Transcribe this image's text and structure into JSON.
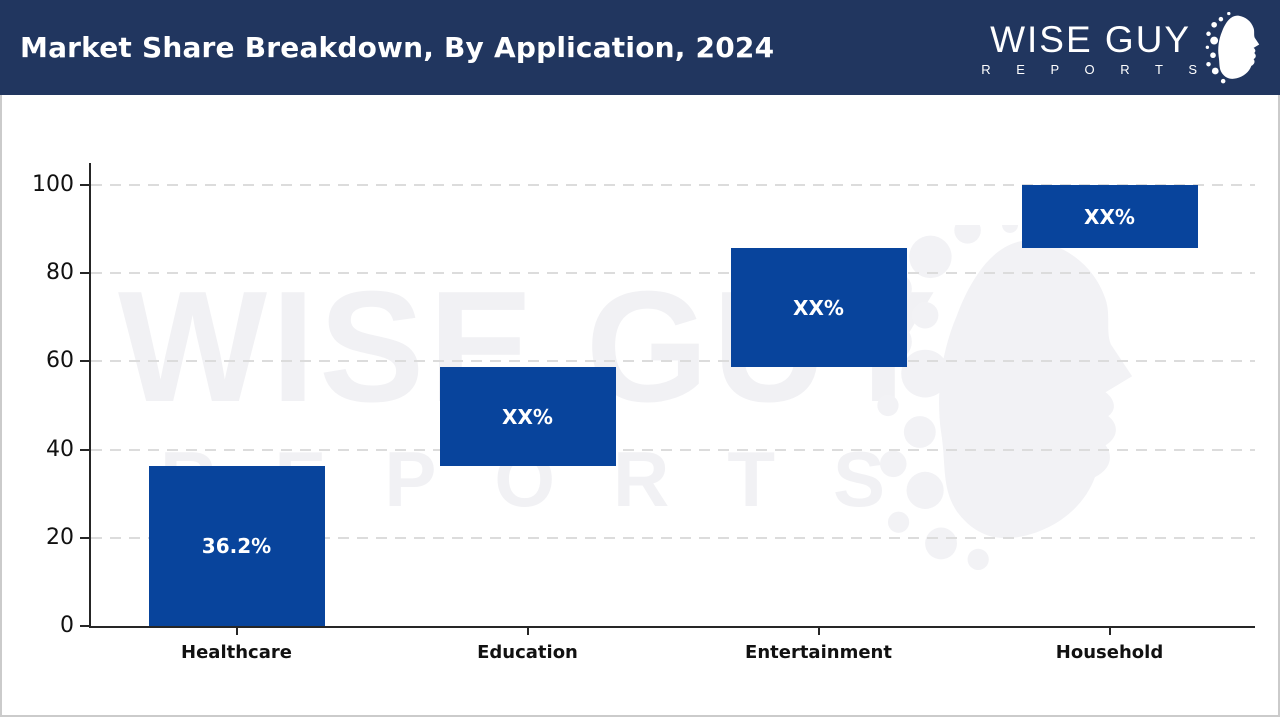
{
  "header": {
    "title": "Market Share Breakdown, By Application, 2024",
    "logo": {
      "line1": "WISE GUY",
      "line2": "R E P O R T S"
    }
  },
  "watermark": {
    "line1": "WISE GUY",
    "line2": "REPORTS"
  },
  "chart_data": {
    "type": "bar",
    "subtype": "floating-waterfall-segments",
    "title": "Market Share Breakdown, By Application, 2024",
    "categories": [
      "Healthcare",
      "Education",
      "Entertainment",
      "Household"
    ],
    "segments": [
      {
        "category": "Healthcare",
        "start": 0,
        "end": 36.2,
        "label": "36.2%"
      },
      {
        "category": "Education",
        "start": 36.2,
        "end": 58.7,
        "label": "XX%"
      },
      {
        "category": "Entertainment",
        "start": 58.7,
        "end": 85.7,
        "label": "XX%"
      },
      {
        "category": "Household",
        "start": 85.7,
        "end": 100,
        "label": "XX%"
      }
    ],
    "xlabel": "",
    "ylabel": "",
    "yticks": [
      0,
      20,
      40,
      60,
      80,
      100
    ],
    "ylim": [
      0,
      105
    ],
    "grid": "horizontal-dashed",
    "legend": "none",
    "bar_color": "#08449c",
    "bar_label_color": "#ffffff",
    "axis_color": "#262626",
    "gridline_color": "#dcdcdc"
  },
  "colors": {
    "header_bg": "#21365f",
    "page_bg": "#ffffff",
    "border": "#cbcbcb",
    "watermark": "#f1f1f4",
    "text": "#111111"
  }
}
